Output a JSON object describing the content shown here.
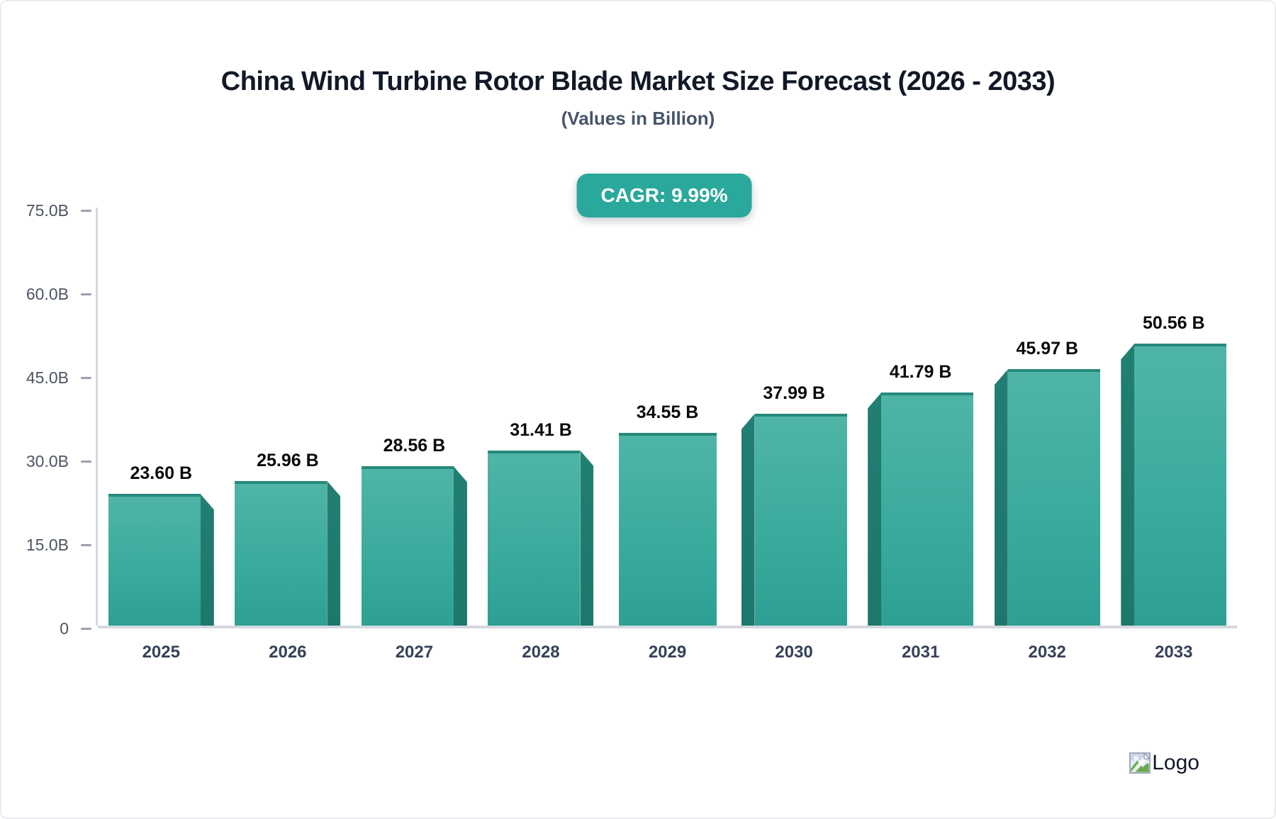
{
  "header": {
    "title": "China Wind Turbine Rotor Blade Market Size Forecast (2026 - 2033)",
    "subtitle": "(Values in Billion)",
    "cagr_badge": "CAGR: 9.99%"
  },
  "chart_data": {
    "type": "bar",
    "title": "China Wind Turbine Rotor Blade Market Size Forecast (2026 - 2033)",
    "subtitle": "(Values in Billion)",
    "categories": [
      "2025",
      "2026",
      "2027",
      "2028",
      "2029",
      "2030",
      "2031",
      "2032",
      "2033"
    ],
    "values": [
      23.6,
      25.96,
      28.56,
      31.41,
      34.55,
      37.99,
      41.79,
      45.97,
      50.56
    ],
    "bar_labels": [
      "23.60 B",
      "25.96 B",
      "28.56 B",
      "31.41 B",
      "34.55 B",
      "37.99 B",
      "41.79 B",
      "45.97 B",
      "50.56 B"
    ],
    "unit": "Billion",
    "xlabel": "",
    "ylabel": "",
    "ylim": [
      0,
      75
    ],
    "yticks": [
      {
        "label": "75.0B",
        "value": 75
      },
      {
        "label": "60.0B",
        "value": 60
      },
      {
        "label": "45.0B",
        "value": 45
      },
      {
        "label": "30.0B",
        "value": 30
      },
      {
        "label": "15.0B",
        "value": 15
      },
      {
        "label": "0",
        "value": 0
      }
    ],
    "grid": false,
    "legend": false,
    "style": "3d-perspective-bars",
    "colors": {
      "bar_top": "#4fb5a6",
      "bar_bottom": "#2ea093",
      "bar_side_face": "#1f7c70",
      "bar_top_edge": "#26897b",
      "badge_background": "#2aa89b",
      "axis_line": "#d4d8df",
      "tick_text": "#4b5563",
      "year_text": "#36415a",
      "value_text": "#0a0a0a",
      "title_text": "#111827",
      "subtitle_text": "#475569"
    }
  },
  "footer": {
    "logo_alt": "Logo"
  }
}
